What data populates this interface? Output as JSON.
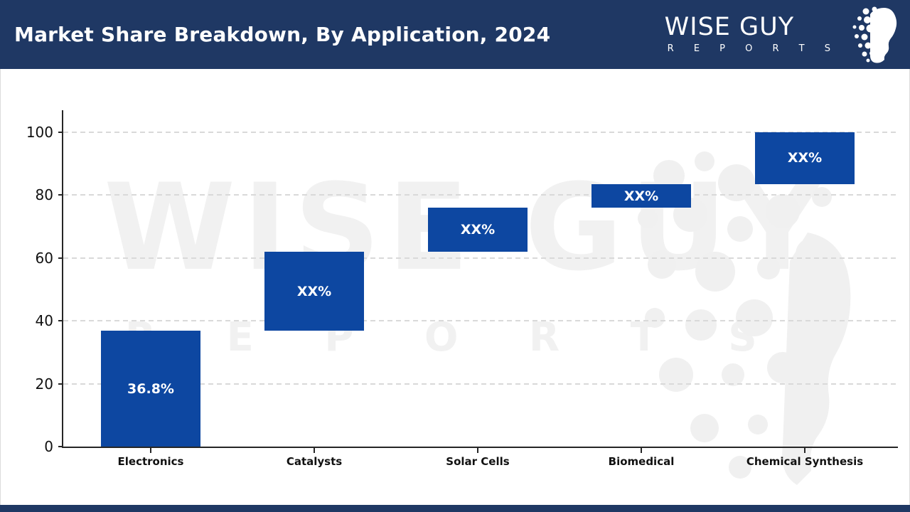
{
  "header": {
    "title": "Market Share Breakdown, By Application, 2024",
    "logo": {
      "line1": "WISE GUY",
      "line2": "R E P O R T S",
      "icon": "dotted-head-profile"
    }
  },
  "watermark": {
    "line1": "WISE GUY",
    "line2": "R E P O R T S"
  },
  "chart_data": {
    "type": "bar",
    "subtype": "waterfall",
    "title": "Market Share Breakdown, By Application, 2024",
    "xlabel": "",
    "ylabel": "",
    "categories": [
      "Electronics",
      "Catalysts",
      "Solar Cells",
      "Biomedical",
      "Chemical Synthesis"
    ],
    "segments": [
      {
        "category": "Electronics",
        "start": 0,
        "end": 36.8,
        "label": "36.8%"
      },
      {
        "category": "Catalysts",
        "start": 36.8,
        "end": 62,
        "label": "XX%"
      },
      {
        "category": "Solar Cells",
        "start": 62,
        "end": 76,
        "label": "XX%"
      },
      {
        "category": "Biomedical",
        "start": 76,
        "end": 83.5,
        "label": "XX%"
      },
      {
        "category": "Chemical Synthesis",
        "start": 83.5,
        "end": 100,
        "label": "XX%"
      }
    ],
    "yticks": [
      0,
      20,
      40,
      60,
      80,
      100
    ],
    "ylim": [
      0,
      105
    ],
    "grid": "horizontal-dashed",
    "legend": "none",
    "bar_color": "#0d47a1",
    "bar_label_color": "#ffffff",
    "grid_color": "#d9d9d9",
    "axis_color": "#262626",
    "header_bg": "#1f3864",
    "watermark_color": "#f1f1f1"
  }
}
